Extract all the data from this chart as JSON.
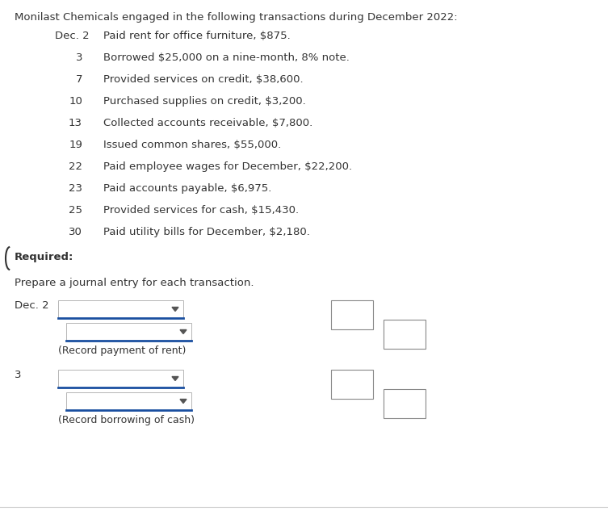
{
  "title": "Monilast Chemicals engaged in the following transactions during December 2022:",
  "transactions": [
    {
      "date": "Dec. 2",
      "desc": "Paid rent for office furniture, $875.",
      "indent": 1
    },
    {
      "date": "3",
      "desc": "Borrowed $25,000 on a nine-month, 8% note.",
      "indent": 2
    },
    {
      "date": "7",
      "desc": "Provided services on credit, $38,600.",
      "indent": 2
    },
    {
      "date": "10",
      "desc": "Purchased supplies on credit, $3,200.",
      "indent": 2
    },
    {
      "date": "13",
      "desc": "Collected accounts receivable, $7,800.",
      "indent": 2
    },
    {
      "date": "19",
      "desc": "Issued common shares, $55,000.",
      "indent": 2
    },
    {
      "date": "22",
      "desc": "Paid employee wages for December, $22,200.",
      "indent": 2
    },
    {
      "date": "23",
      "desc": "Paid accounts payable, $6,975.",
      "indent": 2
    },
    {
      "date": "25",
      "desc": "Provided services for cash, $15,430.",
      "indent": 2
    },
    {
      "date": "30",
      "desc": "Paid utility bills for December, $2,180.",
      "indent": 2
    }
  ],
  "required_label": "Required:",
  "prepare_label": "Prepare a journal entry for each transaction.",
  "journal_entries": [
    {
      "date": "Dec. 2",
      "rows": 2,
      "note": "(Record payment of rent)"
    },
    {
      "date": "3",
      "rows": 2,
      "note": "(Record borrowing of cash)"
    }
  ],
  "bg_color": "#ffffff",
  "text_color": "#333333",
  "font_size": 9.5,
  "title_font_size": 9.5,
  "dropdown_color": "#1a4fa0",
  "box_edge_color": "#888888"
}
